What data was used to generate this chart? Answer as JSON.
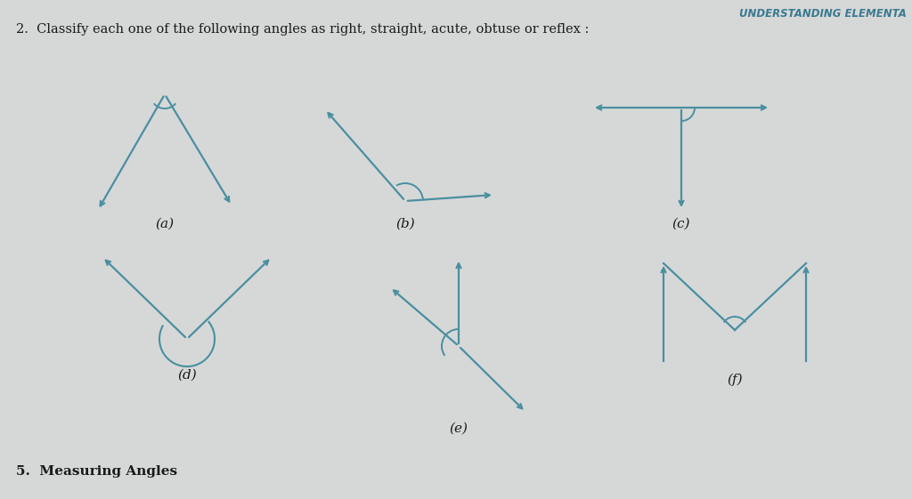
{
  "title_right": "UNDERSTANDING ELEMENTA",
  "question": "2.  Classify each one of the following angles as right, straight, acute, obtuse or reflex :",
  "bg_color": "#d6d8d8",
  "line_color": "#4a8fa0",
  "text_color": "#1a1a1a",
  "label_color": "#1a1a1a",
  "title_color": "#3a7a90",
  "bottom_text": "5.  Measuring Angles",
  "labels": [
    "(a)",
    "(b)",
    "(c)",
    "(d)",
    "(e)",
    "(f)"
  ]
}
